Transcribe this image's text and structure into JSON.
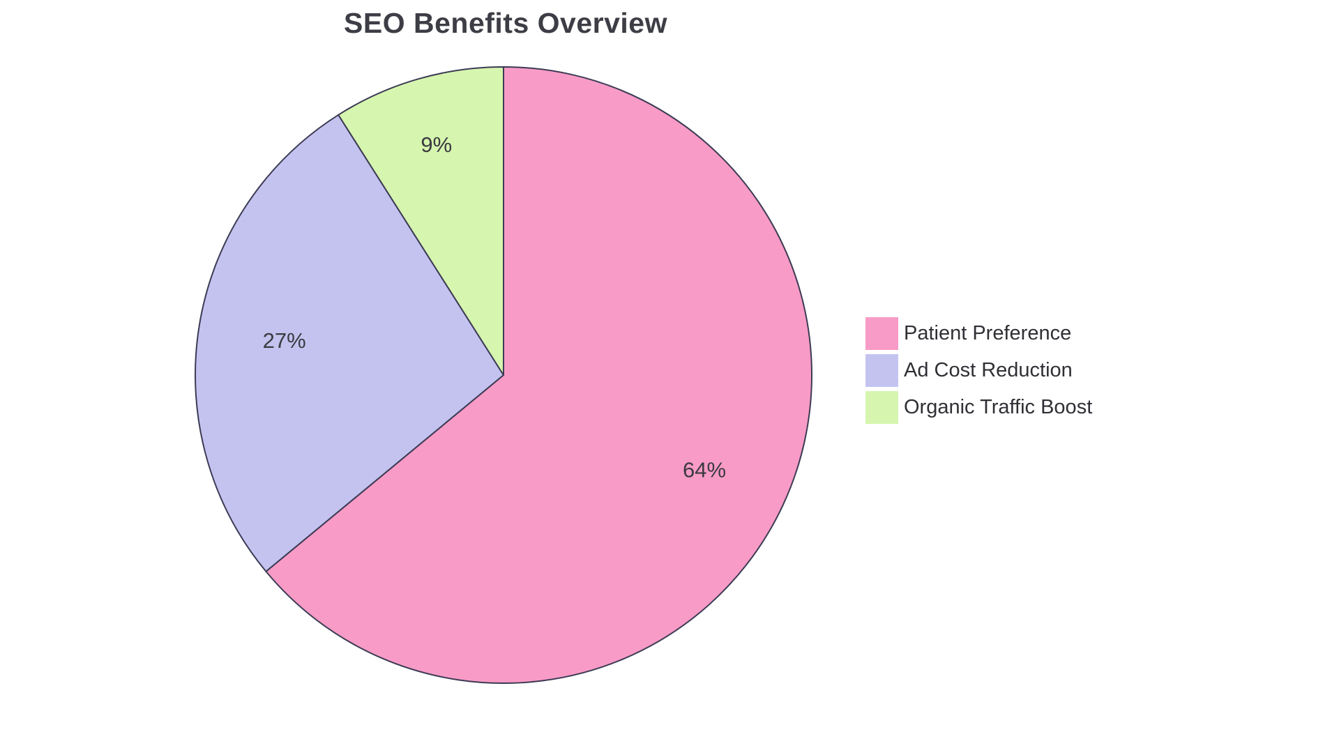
{
  "page": {
    "background_color": "#ffffff"
  },
  "chart_data": {
    "type": "pie",
    "title": "SEO Benefits Overview",
    "legend_position": "right",
    "start_angle_deg": 0,
    "direction": "clockwise",
    "outline_color": "#3c3b54",
    "slices": [
      {
        "id": "patient-preference",
        "label": "Patient Preference",
        "value": 64,
        "pct_label": "64%",
        "color": "#f89bc7",
        "label_distance": 0.72
      },
      {
        "id": "ad-cost-reduction",
        "label": "Ad Cost Reduction",
        "value": 27,
        "pct_label": "27%",
        "color": "#c4c3f0",
        "label_distance": 0.72
      },
      {
        "id": "organic-traffic-boost",
        "label": "Organic Traffic Boost",
        "value": 9,
        "pct_label": "9%",
        "color": "#d6f5af",
        "label_distance": 0.78
      }
    ]
  }
}
